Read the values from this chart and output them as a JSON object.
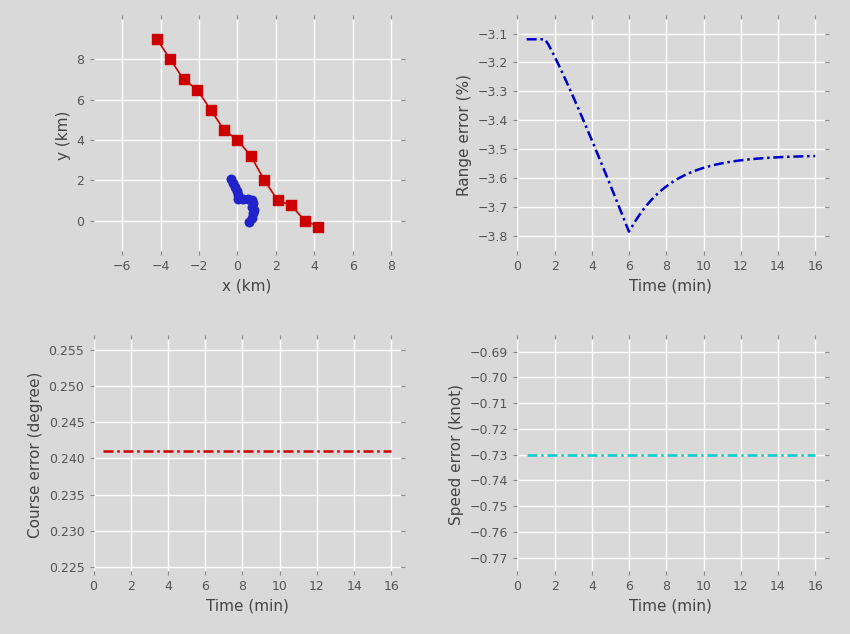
{
  "bg_color": "#d9d9d9",
  "target_x": [
    -4.2,
    -3.5,
    -2.8,
    -2.1,
    -1.4,
    -0.7,
    0.0,
    0.7,
    1.4,
    2.1,
    2.8,
    3.5,
    4.2
  ],
  "target_y": [
    9.0,
    8.0,
    7.0,
    6.5,
    5.5,
    4.5,
    4.0,
    3.2,
    2.0,
    1.0,
    0.75,
    0.0,
    -0.3
  ],
  "observer_x": [
    -0.35,
    -0.25,
    -0.15,
    -0.05,
    0.05,
    0.05,
    0.3,
    0.55,
    0.75,
    0.8,
    0.75,
    0.85,
    0.8,
    0.75,
    0.6
  ],
  "observer_y": [
    2.05,
    1.85,
    1.65,
    1.45,
    1.25,
    1.05,
    1.05,
    1.05,
    1.0,
    0.85,
    0.65,
    0.5,
    0.35,
    0.15,
    -0.05
  ],
  "traj_color": "#cc0000",
  "obs_color": "#2222cc",
  "xlim_traj": [
    -7.5,
    8.5
  ],
  "ylim_traj": [
    -1.5,
    10.0
  ],
  "xticks_traj": [
    -6,
    -4,
    -2,
    0,
    2,
    4,
    6,
    8
  ],
  "yticks_traj": [
    0,
    2,
    4,
    6,
    8
  ],
  "xlabel_traj": "x (km)",
  "ylabel_traj": "y (km)",
  "time_xlim": [
    0,
    16.5
  ],
  "xticks_time": [
    0,
    2,
    4,
    6,
    8,
    10,
    12,
    14,
    16
  ],
  "range_error_color": "#0000cc",
  "range_ylim": [
    -3.85,
    -3.05
  ],
  "range_yticks": [
    -3.8,
    -3.7,
    -3.6,
    -3.5,
    -3.4,
    -3.3,
    -3.2,
    -3.1
  ],
  "xlabel_range": "Time (min)",
  "ylabel_range": "Range error (%)",
  "course_error_value": 0.241,
  "course_error_color": "#cc0000",
  "course_ylim": [
    0.2245,
    0.2565
  ],
  "course_yticks": [
    0.225,
    0.23,
    0.235,
    0.24,
    0.245,
    0.25,
    0.255
  ],
  "xlabel_course": "Time (min)",
  "ylabel_course": "Course error (degree)",
  "speed_error_value": -0.73,
  "speed_error_color": "#00cccc",
  "speed_ylim": [
    -0.775,
    -0.685
  ],
  "speed_yticks": [
    -0.77,
    -0.76,
    -0.75,
    -0.74,
    -0.73,
    -0.72,
    -0.71,
    -0.7,
    -0.69
  ],
  "xlabel_speed": "Time (min)",
  "ylabel_speed": "Speed error (knot)"
}
